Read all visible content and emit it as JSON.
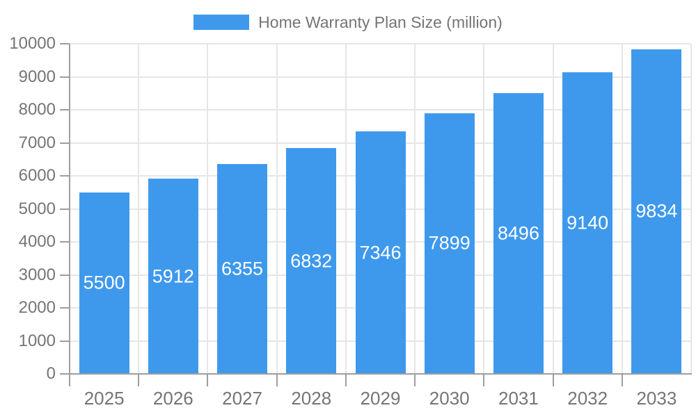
{
  "legend": {
    "label": "Home Warranty Plan Size (million)"
  },
  "colors": {
    "bar": "#3e99ed",
    "text": "#757575",
    "grid": "#e6e6e6",
    "axis": "#9e9e9e",
    "bar_label": "#ffffff",
    "background": "#ffffff"
  },
  "chart_data": {
    "type": "bar",
    "title": "Home Warranty Plan Size (million)",
    "categories": [
      "2025",
      "2026",
      "2027",
      "2028",
      "2029",
      "2030",
      "2031",
      "2032",
      "2033"
    ],
    "values": [
      5500,
      5912,
      6355,
      6832,
      7346,
      7899,
      8496,
      9140,
      9834
    ],
    "xlabel": "",
    "ylabel": "",
    "ylim": [
      0,
      10000
    ],
    "y_tick_step": 1000,
    "grid": true,
    "legend_position": "top",
    "legend_entries": [
      "Home Warranty Plan Size (million)"
    ],
    "value_labels": "inside-middle-white"
  }
}
